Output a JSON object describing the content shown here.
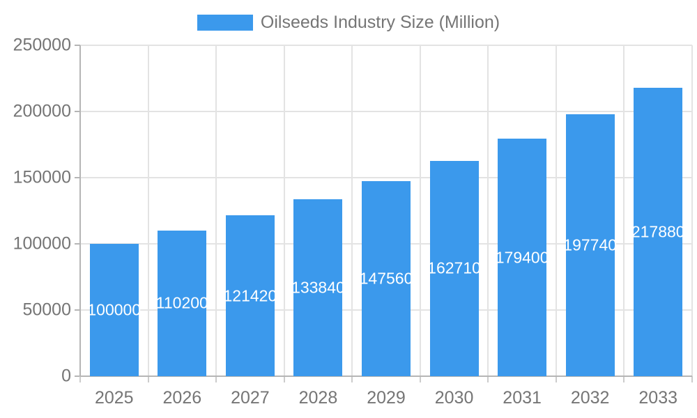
{
  "chart_data": {
    "type": "bar",
    "title": "Oilseeds Industry Size (Million)",
    "legend": {
      "position": "top",
      "label": "Oilseeds Industry Size (Million)",
      "swatch_color": "#3b99ec"
    },
    "categories": [
      "2025",
      "2026",
      "2027",
      "2028",
      "2029",
      "2030",
      "2031",
      "2032",
      "2033"
    ],
    "series": [
      {
        "name": "Oilseeds Industry Size (Million)",
        "values": [
          100000,
          110200,
          121420,
          133840,
          147560,
          162710,
          179400,
          197740,
          217880
        ]
      }
    ],
    "value_labels": [
      "100000",
      "110200",
      "121420",
      "133840",
      "147560",
      "162710",
      "179400",
      "197740",
      "217880"
    ],
    "xlabel": "",
    "ylabel": "",
    "ylim": [
      0,
      250000
    ],
    "yticks": [
      0,
      50000,
      100000,
      150000,
      200000,
      250000
    ],
    "ytick_labels": [
      "0",
      "50000",
      "100000",
      "150000",
      "200000",
      "250000"
    ],
    "grid": true,
    "colors": {
      "bar": "#3b99ec",
      "value_label": "#ffffff",
      "axis_text": "#757575",
      "gridline": "#e3e3e3",
      "axis_line": "#b5b5b5"
    }
  }
}
